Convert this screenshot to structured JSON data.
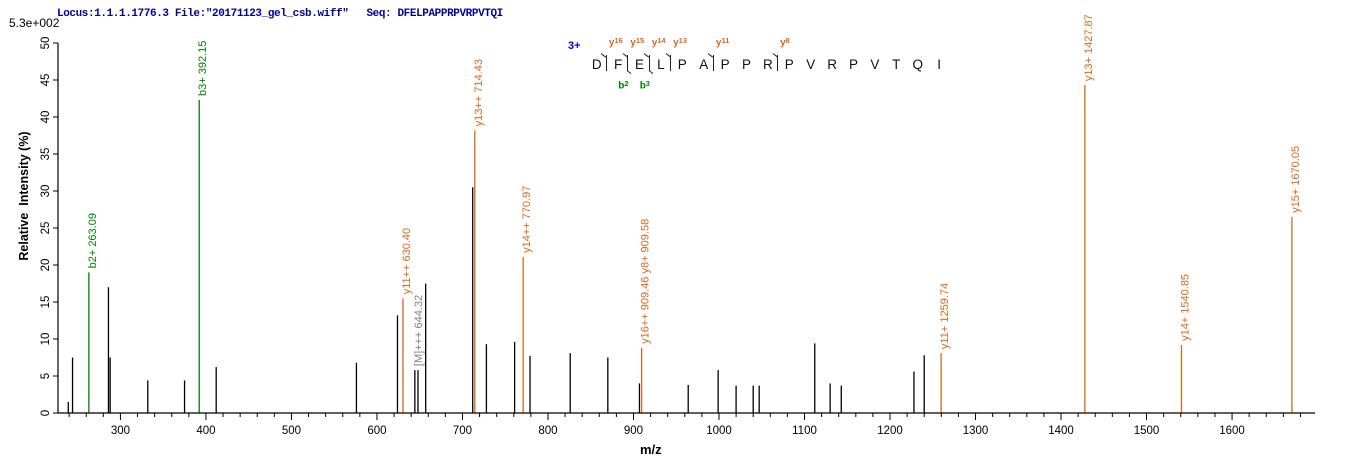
{
  "header": {
    "intensity_scale": "5.3e+002",
    "locus_file": "Locus:1.1.1.1776.3 File:\"20171123_gel_csb.wiff\"",
    "seq_label": "Seq:",
    "sequence": "DFELPAPPRPVRPVTQI"
  },
  "annotation": {
    "charge": "3+",
    "sequence": "DFELPAPPRPVRPVTQI",
    "markers": [
      {
        "index": 1,
        "y_ion": "y16"
      },
      {
        "index": 2,
        "y_ion": "y15",
        "b_ion": "b2"
      },
      {
        "index": 3,
        "y_ion": "y14",
        "b_ion": "b3"
      },
      {
        "index": 4,
        "y_ion": "y13"
      },
      {
        "index": 6,
        "y_ion": "y11"
      },
      {
        "index": 9,
        "y_ion": "y8"
      }
    ]
  },
  "colors": {
    "peak": "#000000",
    "b_ion": "#008000",
    "y_ion": "#d2691e",
    "precursor_label": "#808080",
    "header_text": "#000099",
    "charge_text": "#0000ee"
  },
  "chart_data": {
    "type": "bar",
    "subtype": "centroid-mass-spectrum",
    "title": "",
    "xlabel": "m/z",
    "ylabel": "Relative  Intensity (%)",
    "xlim": [
      227,
      1697
    ],
    "ylim": [
      0,
      50
    ],
    "x_axis": {
      "minor_start": 240,
      "minor_end": 1680,
      "minor_step": 20,
      "major_step": 100,
      "major_labels": [
        300,
        400,
        500,
        600,
        700,
        800,
        900,
        1000,
        1100,
        1200,
        1300,
        1400,
        1500,
        1600
      ]
    },
    "y_axis": {
      "tick_step": 5
    },
    "peaks": [
      {
        "mz": 239,
        "intensity": 1.5
      },
      {
        "mz": 244,
        "intensity": 7.5
      },
      {
        "mz": 263.09,
        "intensity": 19.0,
        "type": "b",
        "label": "b2+ 263.09"
      },
      {
        "mz": 286,
        "intensity": 17.0
      },
      {
        "mz": 288,
        "intensity": 7.5
      },
      {
        "mz": 332,
        "intensity": 4.4
      },
      {
        "mz": 375,
        "intensity": 4.4
      },
      {
        "mz": 392.15,
        "intensity": 42.3,
        "type": "b",
        "label": "b3+ 392.15"
      },
      {
        "mz": 412,
        "intensity": 6.2
      },
      {
        "mz": 576,
        "intensity": 6.8
      },
      {
        "mz": 624,
        "intensity": 13.2
      },
      {
        "mz": 630.4,
        "intensity": 15.5,
        "type": "y",
        "label": "y11++ 630.40"
      },
      {
        "mz": 644.32,
        "intensity": 5.8,
        "type": "precursor",
        "label": "[M]+++ 644.32"
      },
      {
        "mz": 648,
        "intensity": 5.8
      },
      {
        "mz": 657,
        "intensity": 17.5
      },
      {
        "mz": 712,
        "intensity": 30.5
      },
      {
        "mz": 714.43,
        "intensity": 38.2,
        "type": "y",
        "label": "y13++ 714.43"
      },
      {
        "mz": 728,
        "intensity": 9.3
      },
      {
        "mz": 761,
        "intensity": 9.6
      },
      {
        "mz": 770.97,
        "intensity": 21.1,
        "type": "y",
        "label": "y14++ 770.97"
      },
      {
        "mz": 779,
        "intensity": 7.7
      },
      {
        "mz": 826,
        "intensity": 8.1
      },
      {
        "mz": 870,
        "intensity": 7.5
      },
      {
        "mz": 907,
        "intensity": 4.0
      },
      {
        "mz": 909.52,
        "intensity": 8.8,
        "type": "y",
        "label": "y16++ 909.46 y8+ 909.58"
      },
      {
        "mz": 964,
        "intensity": 3.8
      },
      {
        "mz": 999,
        "intensity": 5.8
      },
      {
        "mz": 1020,
        "intensity": 3.7
      },
      {
        "mz": 1040,
        "intensity": 3.7
      },
      {
        "mz": 1047,
        "intensity": 3.7
      },
      {
        "mz": 1112,
        "intensity": 9.4
      },
      {
        "mz": 1130,
        "intensity": 4.0
      },
      {
        "mz": 1143,
        "intensity": 3.7
      },
      {
        "mz": 1228,
        "intensity": 5.6
      },
      {
        "mz": 1240,
        "intensity": 7.8
      },
      {
        "mz": 1259.74,
        "intensity": 8.1,
        "type": "y",
        "label": "y11+ 1259.74"
      },
      {
        "mz": 1427.87,
        "intensity": 44.3,
        "type": "y",
        "label": "y13+ 1427.87"
      },
      {
        "mz": 1540.85,
        "intensity": 9.2,
        "type": "y",
        "label": "y14+ 1540.85"
      },
      {
        "mz": 1670.05,
        "intensity": 26.5,
        "type": "y",
        "label": "y15+ 1670.05"
      }
    ]
  }
}
